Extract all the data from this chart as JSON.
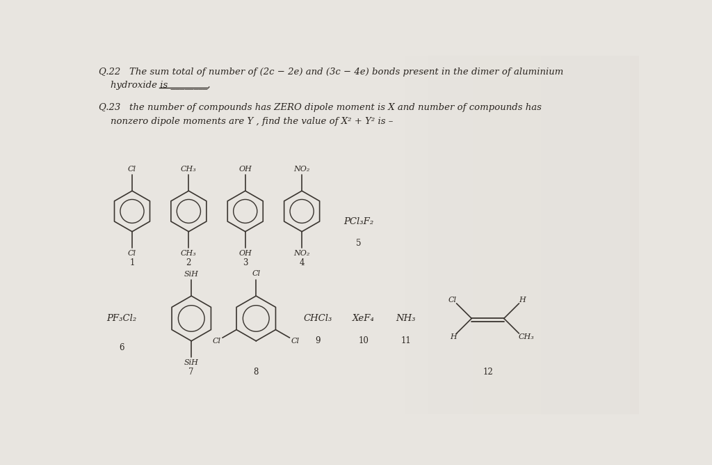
{
  "bg_color": "#e8e5e0",
  "shadow_color": "#9a8878",
  "text_color": "#2a2520",
  "line_color": "#3a3530",
  "q22_line1": "Q.22   The sum total of number of (2c − 2e) and (3c − 4e) bonds present in the dimer of aluminium",
  "q22_line2": "hydroxide is ________.",
  "q23_line1": "Q.23   the number of compounds has ZERO dipole moment is X and number of compounds has",
  "q23_line2": "nonzero dipole moments are Y , find the value of X² + Y² is –",
  "row1_subs_top": [
    "Cl",
    "CH₃",
    "OH",
    "NO₂"
  ],
  "row1_subs_bot": [
    "Cl",
    "CH₃",
    "OH",
    "NO₂"
  ],
  "row1_nums": [
    "1",
    "2",
    "3",
    "4"
  ],
  "comp5_label": "PCl₃F₂",
  "comp6_label": "PF₃Cl₂",
  "comp7_subs": [
    "SiH",
    "SiH"
  ],
  "comp8_subs": [
    "Cl",
    "Cl",
    "Cl"
  ],
  "comp9_label": "CHCl₃",
  "comp10_label": "XeF₄",
  "comp11_label": "NH₃",
  "row2_nums": [
    "6",
    "7",
    "8",
    "9",
    "10",
    "11",
    "12"
  ]
}
